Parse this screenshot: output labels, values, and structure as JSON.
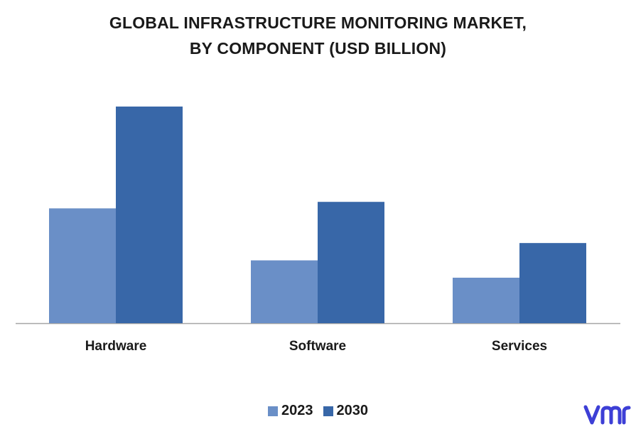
{
  "chart_data": {
    "type": "bar",
    "title_lines": [
      "GLOBAL INFRASTRUCTURE MONITORING MARKET,",
      "BY COMPONENT (USD BILLION)"
    ],
    "categories": [
      "Hardware",
      "Software",
      "Services"
    ],
    "series": [
      {
        "name": "2023",
        "color": "#6a8fc7",
        "values": [
          5.3,
          2.9,
          2.1
        ]
      },
      {
        "name": "2030",
        "color": "#3867a8",
        "values": [
          10.0,
          5.6,
          3.7
        ]
      }
    ],
    "ylim": [
      0,
      10.5
    ],
    "grid": false,
    "legend_position": "bottom"
  },
  "logo": {
    "icon": "vmr-logo-icon",
    "text": "vmr",
    "color": "#3d3fd6"
  }
}
